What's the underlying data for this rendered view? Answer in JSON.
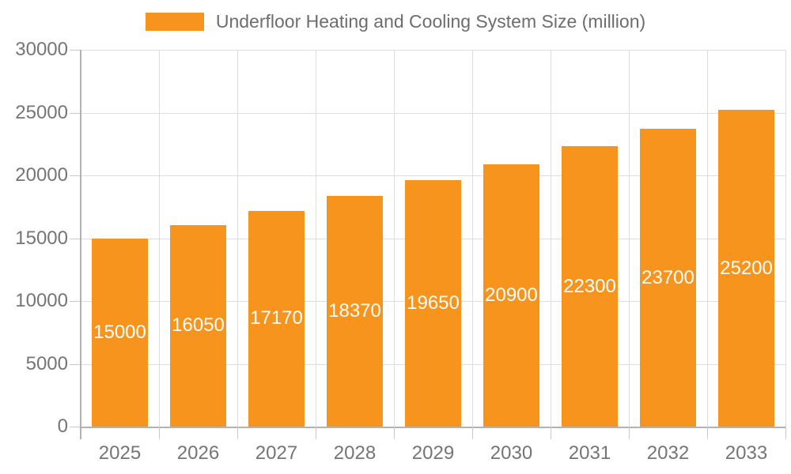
{
  "chart_data": {
    "type": "bar",
    "series_name": "Underfloor Heating and Cooling System Size (million)",
    "categories": [
      "2025",
      "2026",
      "2027",
      "2028",
      "2029",
      "2030",
      "2031",
      "2032",
      "2033"
    ],
    "values": [
      15000,
      16050,
      17170,
      18370,
      19650,
      20900,
      22300,
      23700,
      25200
    ],
    "bar_value_labels": [
      "15000",
      "16050",
      "17170",
      "18370",
      "19650",
      "20900",
      "22300",
      "23700",
      "25200"
    ],
    "ylim": [
      0,
      30000
    ],
    "yticks": [
      0,
      5000,
      10000,
      15000,
      20000,
      25000,
      30000
    ],
    "ytick_labels": [
      "0",
      "5000",
      "10000",
      "15000",
      "20000",
      "25000",
      "30000"
    ],
    "grid": true,
    "legend_position": "top",
    "colors": {
      "bar": "#F7941E",
      "bar_label_text": "#FFFFFF",
      "axis_text": "#757575",
      "legend_text": "#6D6D6D",
      "gridline": "#DEDEDE",
      "axis_line": "#B2B2B2",
      "tick": "#C8C8C8",
      "background": "#FFFFFF"
    }
  }
}
